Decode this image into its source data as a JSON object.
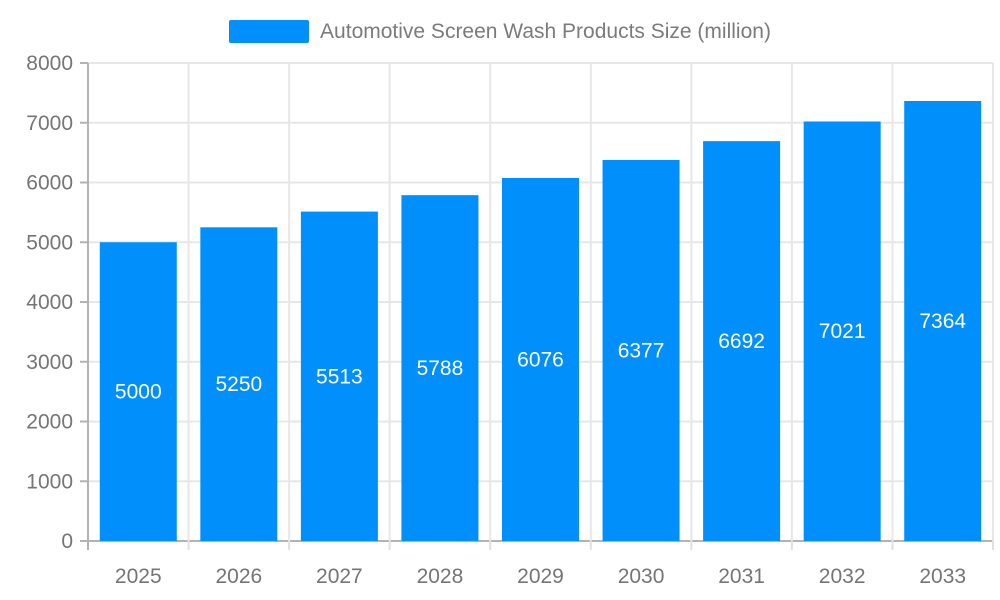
{
  "chart_data": {
    "type": "bar",
    "title": "Automotive Screen Wash Products Size (million)",
    "categories": [
      "2025",
      "2026",
      "2027",
      "2028",
      "2029",
      "2030",
      "2031",
      "2032",
      "2033"
    ],
    "series": [
      {
        "name": "Automotive Screen Wash Products Size (million)",
        "values": [
          5000,
          5250,
          5513,
          5788,
          6076,
          6377,
          6692,
          7021,
          7364
        ]
      }
    ],
    "xlabel": "",
    "ylabel": "",
    "ylim": [
      0,
      8000
    ],
    "ytick_step": 1000,
    "yticks": [
      0,
      1000,
      2000,
      3000,
      4000,
      5000,
      6000,
      7000,
      8000
    ],
    "grid": true,
    "legend_position": "top",
    "data_labels": "inside-center",
    "colors": {
      "bar": "#008FFB",
      "grid_line": "#e7e7e7",
      "axis_line": "#b3b3b3",
      "x_tick": "#e0e0e0",
      "axis_label": "#757575",
      "data_label": "#ffffff",
      "legend_text": "#7b7b7b",
      "background": "#ffffff"
    }
  }
}
